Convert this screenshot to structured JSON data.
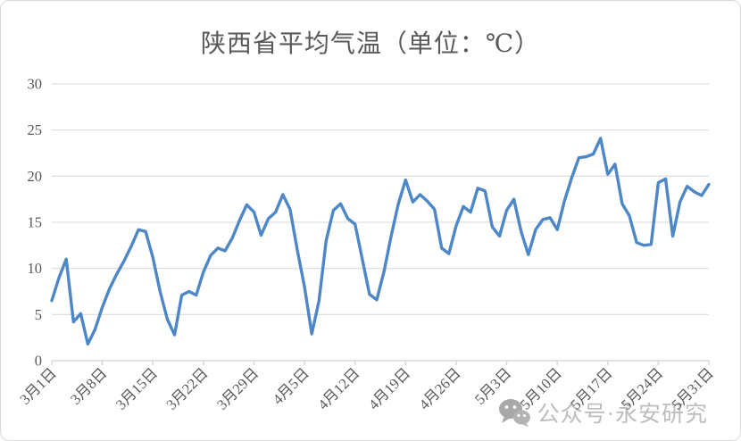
{
  "chart_data": {
    "type": "line",
    "title": "陕西省平均气温（单位：℃）",
    "xlabel": "",
    "ylabel": "",
    "x_tick_labels": [
      "3月1日",
      "3月8日",
      "3月15日",
      "3月22日",
      "3月29日",
      "4月5日",
      "4月12日",
      "4月19日",
      "4月26日",
      "5月3日",
      "5月10日",
      "5月17日",
      "5月24日",
      "5月31日"
    ],
    "x_points_per_tick": 7,
    "y_ticks": [
      0,
      5,
      10,
      15,
      20,
      25,
      30
    ],
    "ylim": [
      0,
      30
    ],
    "values": [
      6.5,
      9.0,
      11.0,
      4.2,
      5.1,
      1.8,
      3.4,
      5.8,
      7.8,
      9.4,
      10.8,
      12.4,
      14.2,
      14.0,
      11.2,
      7.5,
      4.5,
      2.8,
      7.1,
      7.5,
      7.1,
      9.6,
      11.4,
      12.2,
      11.9,
      13.3,
      15.2,
      16.9,
      16.1,
      13.6,
      15.4,
      16.1,
      18.0,
      16.4,
      12.0,
      8.0,
      2.9,
      6.5,
      13.0,
      16.3,
      17.0,
      15.4,
      14.8,
      11.0,
      7.2,
      6.6,
      9.6,
      13.5,
      17.0,
      19.6,
      17.2,
      18.0,
      17.3,
      16.4,
      12.2,
      11.6,
      14.6,
      16.7,
      16.1,
      18.7,
      18.4,
      14.5,
      13.5,
      16.3,
      17.5,
      14.0,
      11.5,
      14.2,
      15.3,
      15.5,
      14.2,
      17.3,
      19.8,
      22.0,
      22.1,
      22.4,
      24.1,
      20.2,
      21.3,
      17.0,
      15.7,
      12.8,
      12.5,
      12.6,
      19.3,
      19.7,
      13.5,
      17.2,
      18.9,
      18.3,
      17.9,
      19.1
    ],
    "grid": "horizontal",
    "legend": "none",
    "line_color": "#4e87c8",
    "gridline_color": "#d9d9d9",
    "axis_color": "#d9d9d9",
    "label_color": "#595959",
    "title_color": "#595959"
  },
  "watermark": {
    "icon": "wechat-icon",
    "text": "公众号·永安研究",
    "color": "#bdbdbd"
  }
}
